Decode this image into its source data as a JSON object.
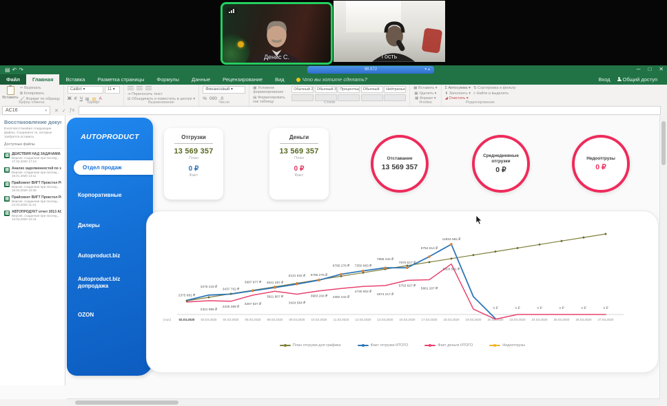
{
  "meeting": {
    "participants": [
      {
        "name": "Денис С."
      },
      {
        "name": "Гость"
      }
    ],
    "share_overlay": "98.572"
  },
  "excel": {
    "window": {
      "save": "▤",
      "undo": "↶",
      "redo": "↷",
      "min": "─",
      "max": "□",
      "close": "✕",
      "signin": "Вход",
      "share": "Общий доступ"
    },
    "tabs": [
      "Файл",
      "Главная",
      "Вставка",
      "Разметка страницы",
      "Формулы",
      "Данные",
      "Рецензирование",
      "Вид"
    ],
    "active_tab": "Главная",
    "tell_me": "Что вы хотите сделать?",
    "name_box": "AC16",
    "formula_bar": {
      "cancel": "✕",
      "enter": "✓",
      "fx": "ƒx"
    },
    "ribbon": {
      "clipboard": {
        "paste": "Вставить",
        "cut": "Вырезать",
        "copy": "Копировать",
        "painter": "Формат по образцу",
        "label": "Буфер обмена"
      },
      "font": {
        "name": "Calibri",
        "size": "11",
        "bold": "Ж",
        "italic": "К",
        "underline": "Ч",
        "label": "Шрифт"
      },
      "alignment": {
        "wrap": "Переносить текст",
        "merge": "Объединить и поместить в центре",
        "label": "Выравнивание"
      },
      "number": {
        "format": "Финансовый",
        "label": "Число"
      },
      "styles": {
        "conditional": "Условное форматирование",
        "as_table": "Форматировать как таблицу",
        "chips": [
          "Обычный 2",
          "Обычный 3",
          "Процентный 2",
          "Обычный",
          "Нейтральный"
        ],
        "label": "Стили"
      },
      "cells": {
        "insert": "Вставить",
        "delete": "Удалить",
        "format": "Формат",
        "label": "Ячейки"
      },
      "editing": {
        "autosum": "Σ Автосумма",
        "fill": "Заполнить",
        "clear": "Очистить",
        "sort": "Сортировка и фильтр",
        "find": "Найти и выделить",
        "label": "Редактирование"
      }
    }
  },
  "recovery": {
    "title": "Восстановление докуме...",
    "subtitle": "Excel восстановил следующие файлы. Сохраните те, которые требуется оставить.",
    "section": "Доступные файлы",
    "files": [
      {
        "name": "ДЕЙСТВИЯ НАД ЗАДАЧАМИ...",
        "version": "Версия, созданная при послед...",
        "date": "17.02.2020 17:14"
      },
      {
        "name": "Анализ задолженностей по зад...",
        "version": "Версия, созданная при послед...",
        "date": "19.01.2020 12:11"
      },
      {
        "name": "Прайсмент ВИГТ Прокстол Ре...",
        "version": "Версия, созданная при послед...",
        "date": "18.03.2020 10:35"
      },
      {
        "name": "Прайсмент ВИГТ Прокстол Ре...",
        "version": "Версия, созданная при послед...",
        "date": "24.03.2020 11:41"
      },
      {
        "name": "АВТОПРОДУКТ отчет 2013 АС...",
        "version": "Версия, созданная при послед...",
        "date": "13.03.2020 12:41"
      }
    ]
  },
  "sidebar": {
    "logo": "AUTOPRODUCT",
    "items": [
      {
        "label": "Отдел продаж",
        "active": true
      },
      {
        "label": "Корпоративные",
        "active": false
      },
      {
        "label": "Дилеры",
        "active": false
      },
      {
        "label": "Autoproduct.biz",
        "active": false
      },
      {
        "label": "Autoproduct.biz допродажа",
        "active": false
      },
      {
        "label": "OZON",
        "active": false
      }
    ]
  },
  "kpi": {
    "cards": [
      {
        "title": "Отгрузки",
        "plan_value": "13 569 357",
        "plan_label": "План",
        "fact_value": "0 ₽",
        "fact_label": "Факт",
        "fact_color": "#2e75b6"
      },
      {
        "title": "Деньги",
        "plan_value": "13 569 357",
        "plan_label": "План",
        "fact_value": "0 ₽",
        "fact_label": "Факт",
        "fact_color": "#e0355f"
      }
    ],
    "circles": [
      {
        "title": "Отставание",
        "value": "13 569 357",
        "value_color": "#3a3a3a"
      },
      {
        "title": "Среднедневные отгрузки",
        "value": "0 ₽",
        "value_color": "#3a3a3a"
      },
      {
        "title": "Недоотгрузы",
        "value": "0 ₽",
        "value_color": "#ee2b5b"
      }
    ],
    "accent_pink": "#ee2b5b",
    "accent_green": "#55691e"
  },
  "chart_data": {
    "type": "line",
    "x": [
      "02.03.2020",
      "03.03.2020",
      "04.03.2020",
      "05.03.2020",
      "06.03.2020",
      "09.03.2020",
      "10.03.2020",
      "11.03.2020",
      "12.03.2020",
      "13.03.2020",
      "16.03.2020",
      "17.03.2020",
      "18.03.2020",
      "19.03.2020",
      "20.03.2020",
      "23.03.2020",
      "24.03.2020",
      "25.03.2020",
      "26.03.2020",
      "27.03.2020"
    ],
    "unit_label": "(тыс)",
    "ylim": [
      -900000,
      14000000
    ],
    "grid": false,
    "legend_position": "bottom",
    "series": [
      {
        "name": "План отгрузки для графика",
        "color": "#7f7f3a",
        "values": [
          2300000,
          2893124,
          3486248,
          4079372,
          4672496,
          5265620,
          5858744,
          6451869,
          7044993,
          7638117,
          8231241,
          8824365,
          9417489,
          10010613,
          10603737,
          11196861,
          11789986,
          12383110,
          12976234,
          13569357
        ],
        "labels": [
          null,
          null,
          null,
          null,
          null,
          null,
          null,
          null,
          null,
          null,
          null,
          null,
          null,
          null,
          null,
          null,
          null,
          null,
          null,
          null
        ]
      },
      {
        "name": "Факт отгрузки ИТОГО",
        "color": "#2e75b6",
        "values": [
          2375981,
          3276218,
          3437762,
          3997877,
          4541297,
          5131532,
          5785276,
          6785276,
          7350983,
          7858434,
          7870617,
          9754614,
          11834582,
          3000000,
          -700000,
          null,
          null,
          null,
          null,
          null
        ],
        "labels": [
          "2375 981 ₽",
          "3276 218 ₽",
          "3437 762 ₽",
          "3997 877 ₽",
          "4541 297 ₽",
          "5131 532 ₽",
          "5785 276 ₽",
          "6785 276 ₽",
          "7350 983 ₽",
          "7858 434 ₽",
          "7870 617 ₽",
          "9754 614 ₽",
          "11834 582 ₽",
          null,
          null,
          null,
          null,
          null,
          null,
          null
        ]
      },
      {
        "name": "Факт деньги ИТОГО",
        "color": "#e8436f",
        "values": [
          2100000,
          2321996,
          2229389,
          3257827,
          3911807,
          3424584,
          3983204,
          4382242,
          4730902,
          4874217,
          5753827,
          5861207,
          8503531,
          900000,
          -800000,
          0,
          0,
          0,
          0,
          0
        ],
        "labels": [
          null,
          "2321 996 ₽",
          "2229 389 ₽",
          "3257 827 ₽",
          "3911 807 ₽",
          "3424 584 ₽",
          "3983 204 ₽",
          "4382 242 ₽",
          "4730 902 ₽",
          "4874 217 ₽",
          "5753 827 ₽",
          "5861 207 ₽",
          "8503 531 ₽",
          null,
          null,
          null,
          null,
          null,
          null,
          null
        ]
      },
      {
        "name": "Недоотгрузы",
        "color": "#f0b429",
        "values": [
          null,
          null,
          null,
          null,
          null,
          null,
          null,
          null,
          null,
          null,
          null,
          null,
          null,
          null,
          null,
          null,
          null,
          null,
          null,
          null
        ],
        "marker_on_fact_indices": [
          3,
          4,
          5,
          6,
          7,
          8,
          9,
          10,
          11,
          12
        ]
      }
    ],
    "zero_labels": {
      "text": "0 ₽",
      "indices": [
        14,
        15,
        16,
        17,
        18,
        19
      ]
    }
  }
}
